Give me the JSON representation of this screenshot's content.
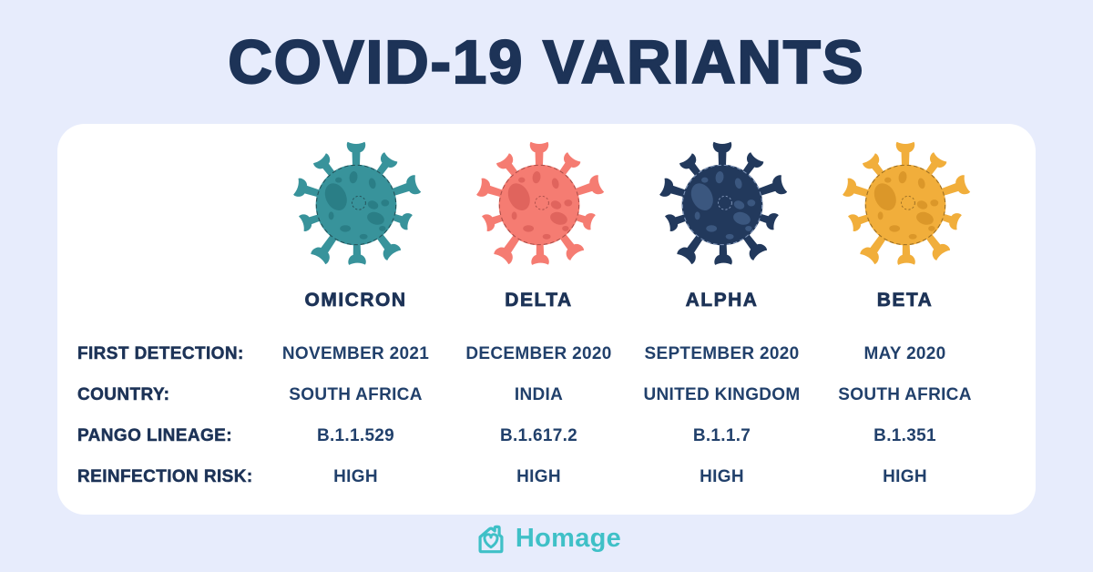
{
  "title": "COVID-19 VARIANTS",
  "card": {
    "row_labels": {
      "first_detection": "FIRST DETECTION:",
      "country": "COUNTRY:",
      "pango_lineage": "PANGO LINEAGE:",
      "reinfection_risk": "REINFECTION RISK:"
    },
    "variants": [
      {
        "name": "OMICRON",
        "first_detection": "NOVEMBER 2021",
        "country": "SOUTH AFRICA",
        "pango_lineage": "B.1.1.529",
        "reinfection_risk": "HIGH",
        "colors": {
          "body": "#38939B",
          "blob": "#2A7E86",
          "outline": "#21454C"
        }
      },
      {
        "name": "DELTA",
        "first_detection": "DECEMBER 2020",
        "country": "INDIA",
        "pango_lineage": "B.1.617.2",
        "reinfection_risk": "HIGH",
        "colors": {
          "body": "#F57C72",
          "blob": "#E0645D",
          "outline": "#9E4742"
        }
      },
      {
        "name": "ALPHA",
        "first_detection": "SEPTEMBER 2020",
        "country": "UNITED KINGDOM",
        "pango_lineage": "B.1.1.7",
        "reinfection_risk": "HIGH",
        "colors": {
          "body": "#22395C",
          "blob": "#3B577F",
          "outline": "#93A9CC"
        }
      },
      {
        "name": "BETA",
        "first_detection": "MAY 2020",
        "country": "SOUTH AFRICA",
        "pango_lineage": "B.1.351",
        "reinfection_risk": "HIGH",
        "colors": {
          "body": "#F1AE3B",
          "blob": "#DB9729",
          "outline": "#8A6220"
        }
      }
    ]
  },
  "footer": {
    "brand": "Homage"
  },
  "theme": {
    "background": "#E7ECFC",
    "card_bg": "#FFFFFF",
    "text_navy": "#1D3357",
    "logo_teal": "#3FC0C7"
  }
}
